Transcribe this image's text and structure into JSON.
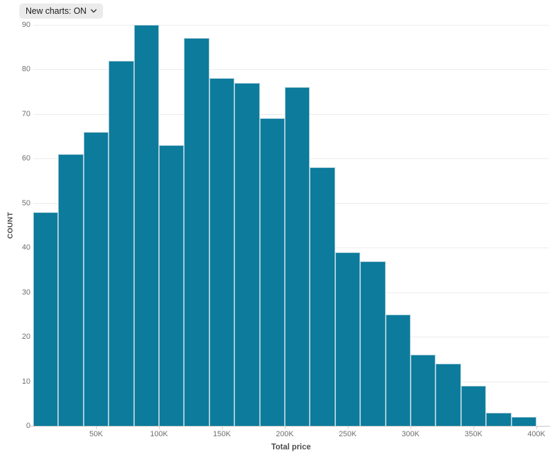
{
  "controls": {
    "new_charts_dropdown": {
      "label": "New charts: ON",
      "state": "ON",
      "chevron_icon": "chevron-down"
    }
  },
  "chart_data": {
    "type": "bar",
    "subtype": "histogram",
    "title": "",
    "xlabel": "Total price",
    "ylabel": "COUNT",
    "bin_start": 0,
    "bin_width": 20000,
    "bin_count": 20,
    "counts": [
      48,
      61,
      66,
      82,
      90,
      63,
      87,
      78,
      77,
      69,
      76,
      58,
      39,
      37,
      25,
      16,
      14,
      9,
      3,
      2
    ],
    "x_ticks": [
      {
        "label": "50K",
        "value": 50000
      },
      {
        "label": "100K",
        "value": 100000
      },
      {
        "label": "150K",
        "value": 150000
      },
      {
        "label": "200K",
        "value": 200000
      },
      {
        "label": "250K",
        "value": 250000
      },
      {
        "label": "300K",
        "value": 300000
      },
      {
        "label": "350K",
        "value": 350000
      },
      {
        "label": "400K",
        "value": 400000
      }
    ],
    "y_ticks": [
      0,
      10,
      20,
      30,
      40,
      50,
      60,
      70,
      80,
      90
    ],
    "ylim": [
      0,
      90
    ],
    "xlim": [
      0,
      410000
    ],
    "grid": "horizontal",
    "legend": "none",
    "colors": {
      "bar_fill": "#0d7b9c",
      "bar_border": "#a8cdd9",
      "gridline": "#ececec",
      "axis_line": "#c8c8c8",
      "tick_label": "#6e6e6e",
      "tick_mark": "#d2d2d2",
      "axis_title": "#4d4d4d",
      "dropdown_bg": "#ebebeb"
    }
  }
}
